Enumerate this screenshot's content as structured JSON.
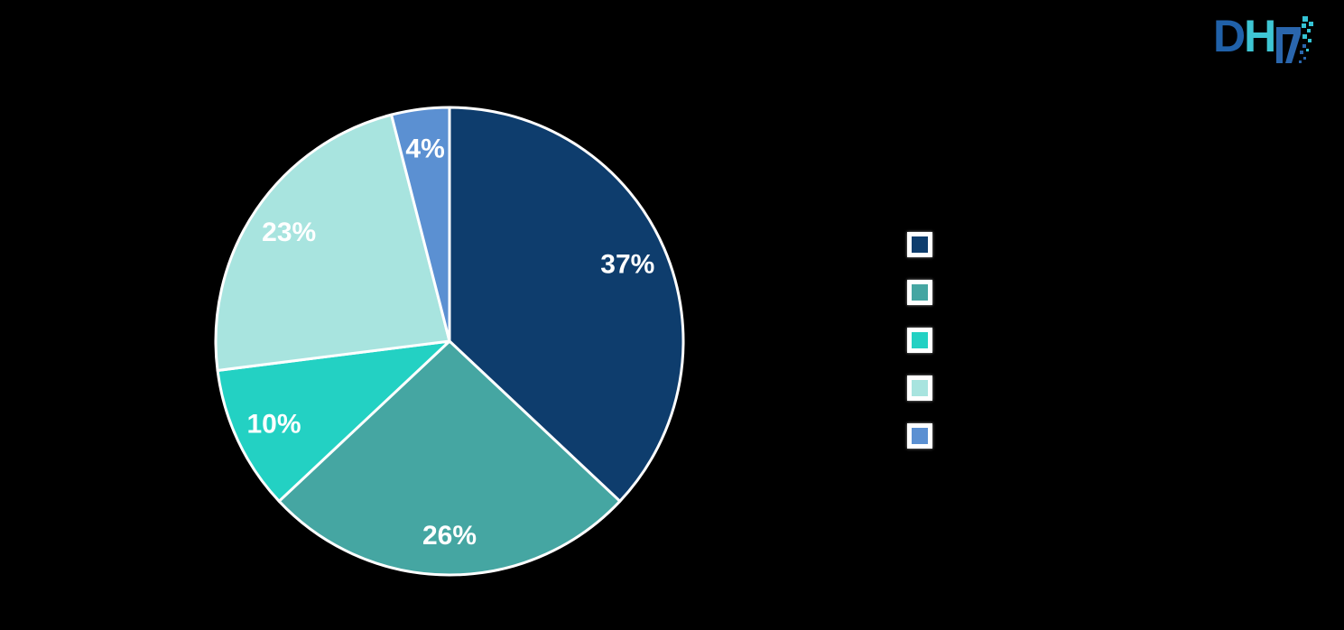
{
  "canvas": {
    "background_color": "#000000"
  },
  "logo": {
    "letters": [
      {
        "text": "D",
        "color": "#2061a9"
      },
      {
        "text": "H",
        "color": "#3ec6d4"
      }
    ],
    "glyph": "pixelated-r",
    "glyph_blue": "#2a66ad",
    "glyph_teal": "#35c4d6"
  },
  "chart_data": {
    "type": "pie",
    "values": [
      37,
      26,
      10,
      23,
      4
    ],
    "labels": [
      "37%",
      "26%",
      "10%",
      "23%",
      "4%"
    ],
    "colors": [
      "#0e3d6d",
      "#45a6a2",
      "#23d1c3",
      "#a8e4df",
      "#5b90d2"
    ],
    "start_angle_deg": 0,
    "direction": "clockwise",
    "label_color": "#ffffff",
    "slice_border_color": "#ffffff",
    "legend": {
      "position": "right",
      "marker_colors": [
        "#0e3d6d",
        "#45a6a2",
        "#23d1c3",
        "#a8e4df",
        "#5b90d2"
      ],
      "labels_visible": false
    }
  }
}
